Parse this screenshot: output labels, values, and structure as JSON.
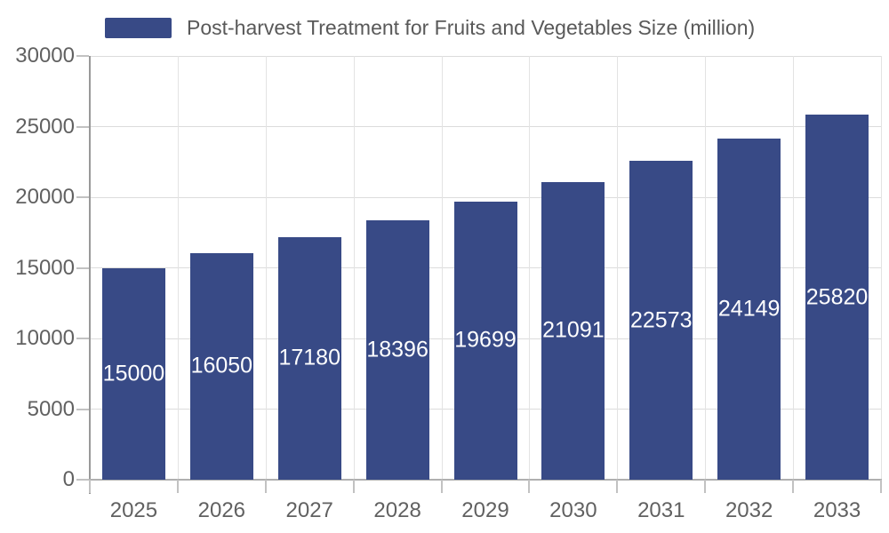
{
  "chart_data": {
    "type": "bar",
    "title": "Post-harvest Treatment for Fruits and Vegetables Size (million)",
    "categories": [
      "2025",
      "2026",
      "2027",
      "2028",
      "2029",
      "2030",
      "2031",
      "2032",
      "2033"
    ],
    "series": [
      {
        "name": "Post-harvest Treatment for Fruits and Vegetables Size (million)",
        "values": [
          15000,
          16050,
          17180,
          18396,
          19699,
          21091,
          22573,
          24149,
          25820
        ]
      }
    ],
    "bar_value_labels": [
      "15000",
      "16050",
      "17180",
      "18396",
      "19699",
      "21091",
      "22573",
      "24149",
      "25820"
    ],
    "xlabel": "",
    "ylabel": "",
    "ylim": [
      0,
      30000
    ],
    "yticks": [
      0,
      5000,
      10000,
      15000,
      20000,
      25000,
      30000
    ],
    "grid": "on",
    "legend_position": "top"
  },
  "theme": {
    "bar_color": "#384A86",
    "bar_label_color": "#FFFFFF",
    "tick_text_color": "#616161",
    "legend_text_color": "#595959",
    "h_grid_color": "#DCDCDC",
    "v_grid_color": "#E3E3E3",
    "x_axis_color": "#B0B0B0",
    "y_axis_color": "#999999",
    "tick_color": "#C2C2C2",
    "background": "#FFFFFF"
  }
}
